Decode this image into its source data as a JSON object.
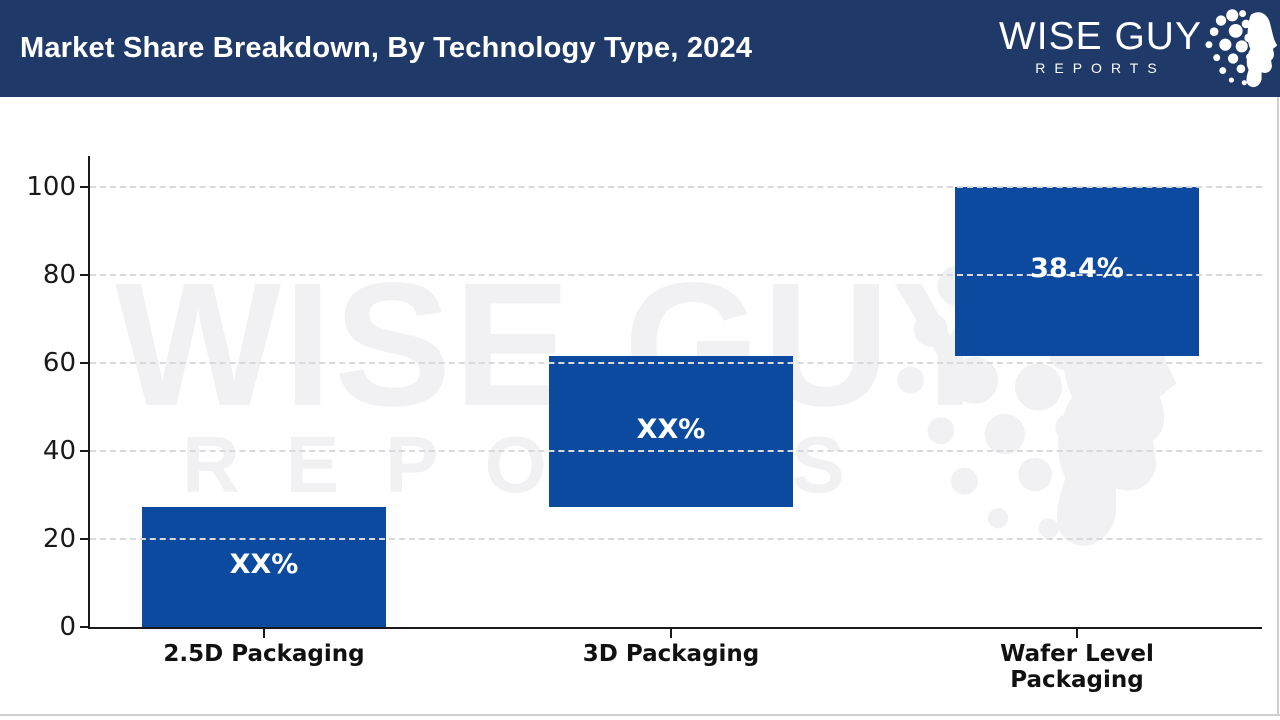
{
  "header": {
    "title": "Market Share Breakdown, By Technology Type, 2024",
    "logo": {
      "line1": "WISE GUY",
      "line2": "REPORTS"
    }
  },
  "watermark": {
    "line1": "WISE GUY",
    "line2": "REPORTS"
  },
  "chart_data": {
    "type": "bar",
    "subtype": "floating-stacked-percentage",
    "title": "Market Share Breakdown, By Technology Type, 2024",
    "categories": [
      "2.5D Packaging",
      "3D Packaging",
      "Wafer Level\nPackaging"
    ],
    "segments": [
      {
        "category": "2.5D Packaging",
        "start": 0,
        "end": 27.2,
        "label": "XX%"
      },
      {
        "category": "3D Packaging",
        "start": 27.2,
        "end": 61.6,
        "label": "XX%"
      },
      {
        "category": "Wafer Level Packaging",
        "start": 61.6,
        "end": 100,
        "label": "38.4%"
      }
    ],
    "ylim": [
      0,
      100
    ],
    "yticks": [
      0,
      20,
      40,
      60,
      80,
      100
    ],
    "grid": "horizontal-dashed",
    "legend": "none",
    "xlabel": "",
    "ylabel": ""
  },
  "colors": {
    "header_bg": "#1f3a68",
    "bar": "#0b4a9e",
    "bar_label": "#ffffff",
    "gridline": "#d9d9d9",
    "axis": "#1a1a1a",
    "watermark": "#f1f1f3",
    "title_text": "#ffffff"
  }
}
